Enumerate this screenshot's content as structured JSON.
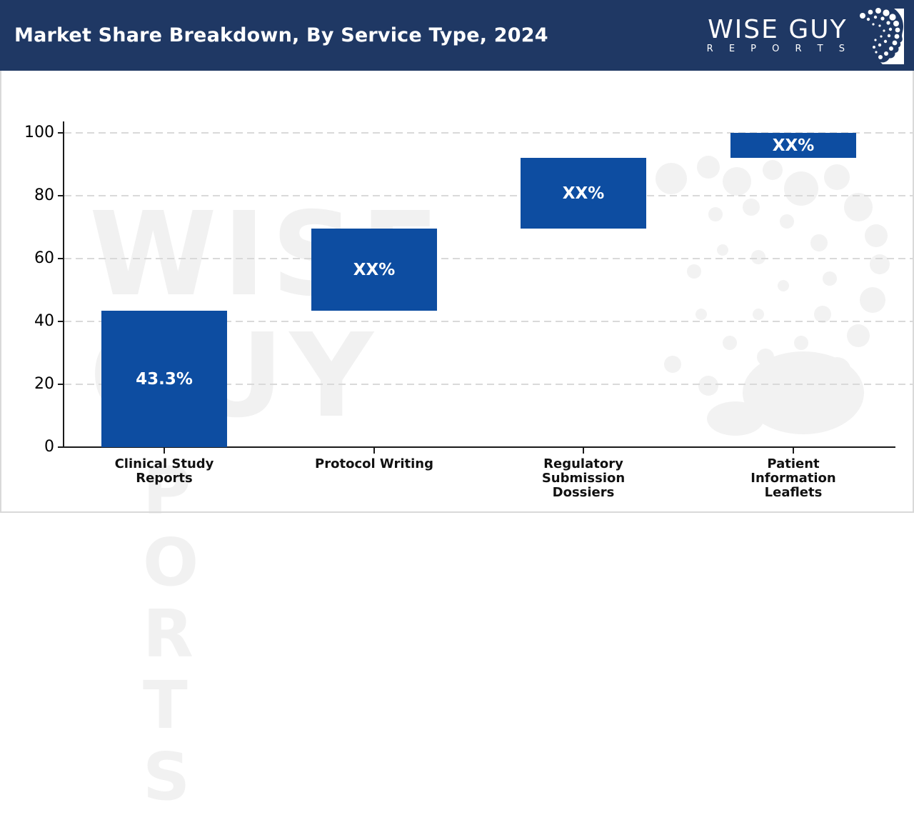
{
  "header": {
    "title": "Market Share Breakdown, By Service Type, 2024",
    "logo": {
      "wordmark": "WISE GUY",
      "subtext": "R E P O R T S"
    }
  },
  "watermark": {
    "line1": "WISE GUY",
    "line2": "R E P O R T S"
  },
  "chart_data": {
    "type": "bar",
    "subtype": "waterfall",
    "title": "Market Share Breakdown, By Service Type, 2024",
    "xlabel": "",
    "ylabel": "",
    "ylim": [
      0,
      100
    ],
    "yticks": [
      0,
      20,
      40,
      60,
      80,
      100
    ],
    "grid": "horizontal-dashed",
    "legend": "none",
    "bar_color": "#0d4da1",
    "value_label_color": "#ffffff",
    "segments": [
      {
        "category_lines": [
          "Clinical Study",
          "Reports"
        ],
        "start": 0,
        "end": 43.3,
        "label": "43.3%"
      },
      {
        "category_lines": [
          "Protocol Writing"
        ],
        "start": 43.3,
        "end": 69.5,
        "label": "XX%"
      },
      {
        "category_lines": [
          "Regulatory",
          "Submission",
          "Dossiers"
        ],
        "start": 69.5,
        "end": 92.0,
        "label": "XX%"
      },
      {
        "category_lines": [
          "Patient",
          "Information",
          "Leaflets"
        ],
        "start": 92.0,
        "end": 100.0,
        "label": "XX%"
      }
    ]
  },
  "colors": {
    "header_bg": "#1f3864",
    "bar": "#0d4da1",
    "grid": "#d9d9d9",
    "axis": "#1a1a1a",
    "watermark": "#f1f1f1"
  }
}
